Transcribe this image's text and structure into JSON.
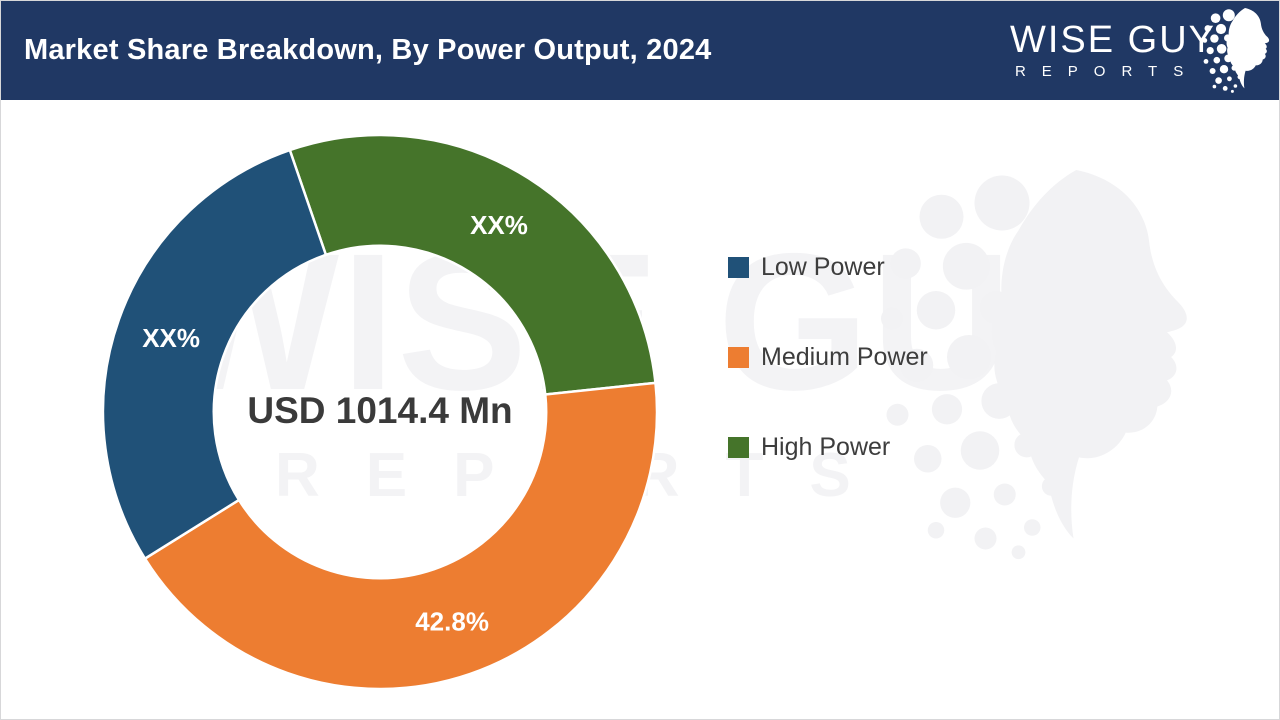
{
  "header": {
    "title": "Market Share Breakdown, By Power Output, 2024",
    "background_color": "#203864",
    "logo": {
      "brand_top": "WISE GUY",
      "brand_bottom": "REPORTS"
    }
  },
  "watermark": {
    "line1": "WISE GUY",
    "line2": "REPORTS"
  },
  "chart_data": {
    "type": "pie",
    "variant": "donut",
    "title": "Market Share Breakdown, By Power Output, 2024",
    "center_label": "USD 1014.4 Mn",
    "start_angle_from_top_deg": -19,
    "clockwise": true,
    "inner_radius_ratio": 0.6,
    "slices": [
      {
        "name": "High Power",
        "value": 28.6,
        "display_label": "XX%",
        "color": "#45742a"
      },
      {
        "name": "Medium Power",
        "value": 42.8,
        "display_label": "42.8%",
        "color": "#ed7d31"
      },
      {
        "name": "Low Power",
        "value": 28.6,
        "display_label": "XX%",
        "color": "#205178"
      }
    ],
    "legend": {
      "position": "right",
      "entries": [
        {
          "label": "Low Power",
          "color": "#205178"
        },
        {
          "label": "Medium Power",
          "color": "#ed7d31"
        },
        {
          "label": "High Power",
          "color": "#45742a"
        }
      ]
    }
  }
}
